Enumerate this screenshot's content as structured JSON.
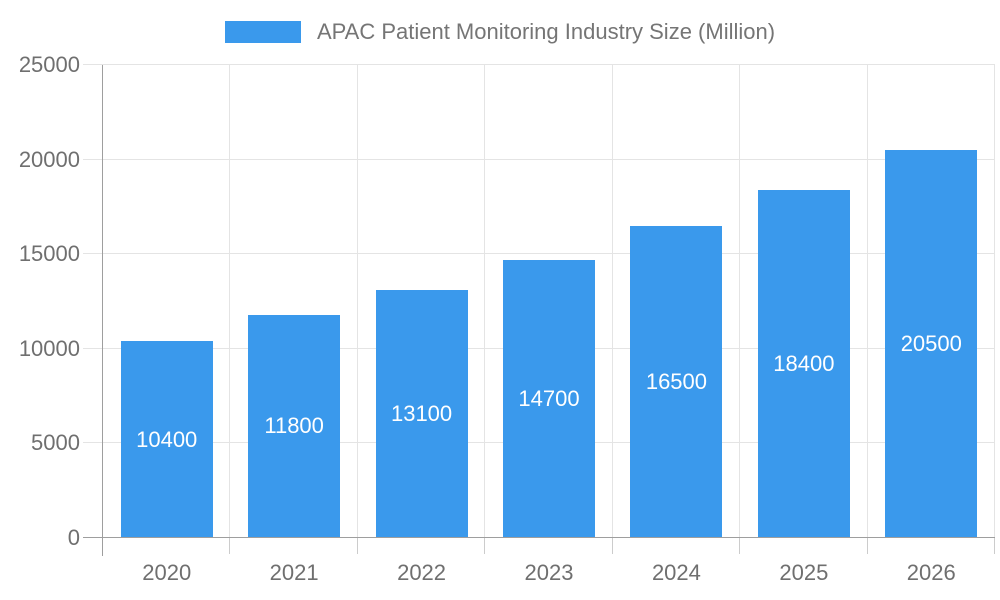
{
  "chart_data": {
    "type": "bar",
    "legend_label": "APAC Patient Monitoring Industry Size (Million)",
    "categories": [
      "2020",
      "2021",
      "2022",
      "2023",
      "2024",
      "2025",
      "2026"
    ],
    "values": [
      10400,
      11800,
      13100,
      14700,
      16500,
      18400,
      20500
    ],
    "xlabel": "",
    "ylabel": "",
    "ylim": [
      0,
      25000
    ],
    "y_ticks": [
      0,
      5000,
      10000,
      15000,
      20000,
      25000
    ],
    "grid": "horizontal-and-vertical",
    "legend_position": "top-center",
    "value_labels": "inside-middle-white",
    "colors": {
      "bar": "#3A99EC",
      "bar_label_text": "#FFFFFF",
      "legend_text": "#757575",
      "axis_label_text": "#6F6F6F",
      "gridline": "#E4E4E4",
      "tick": "#CCCCCC",
      "axis_line": "#9E9E9E",
      "background": "#FFFFFF"
    }
  }
}
